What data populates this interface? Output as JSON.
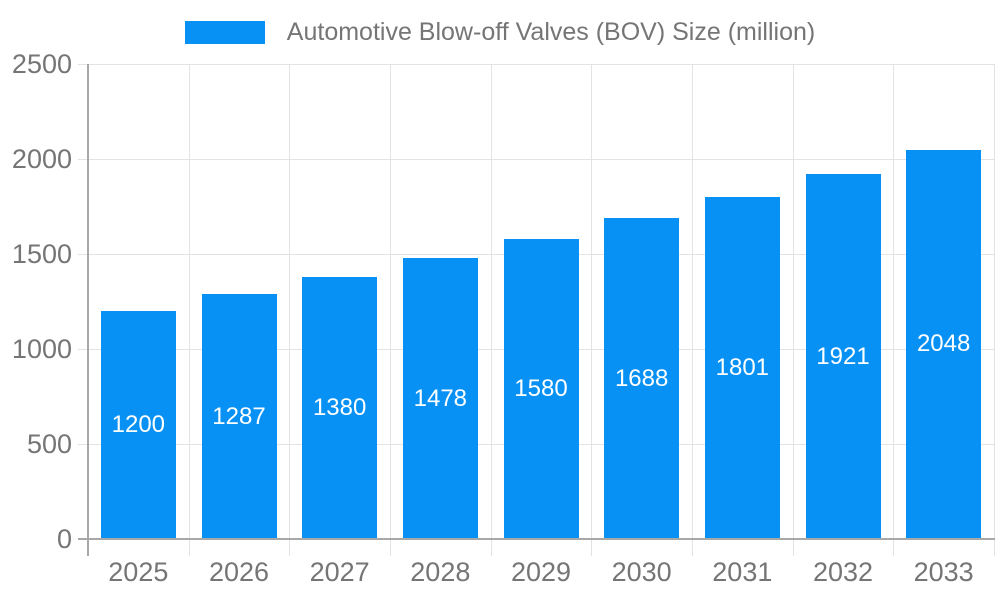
{
  "chart_data": {
    "type": "bar",
    "legend": "Automotive Blow-off Valves (BOV) Size (million)",
    "legend_position": "top",
    "categories": [
      "2025",
      "2026",
      "2027",
      "2028",
      "2029",
      "2030",
      "2031",
      "2032",
      "2033"
    ],
    "values": [
      1200,
      1287,
      1380,
      1478,
      1580,
      1688,
      1801,
      1921,
      2048
    ],
    "xlabel": "",
    "ylabel": "",
    "ylim": [
      0,
      2500
    ],
    "yticks": [
      0,
      500,
      1000,
      1500,
      2000,
      2500
    ],
    "grid": true,
    "colors": {
      "bar": "#0791F5",
      "bar_label": "#FFFFFF",
      "grid_line": "#E3E3E3",
      "axis_line": "#A8A8A8",
      "tick_label": "#757575",
      "legend_text": "#757575",
      "background": "#FFFFFF"
    }
  }
}
